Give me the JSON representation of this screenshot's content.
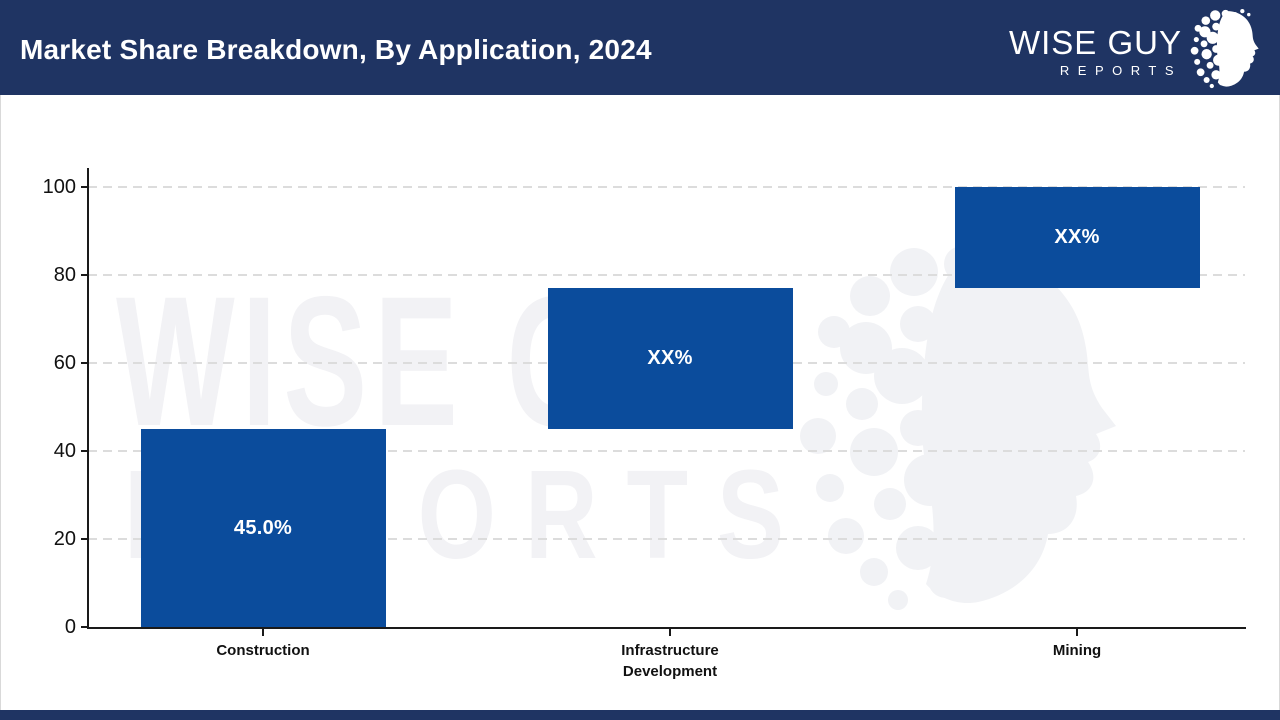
{
  "header": {
    "title": "Market Share Breakdown, By Application, 2024",
    "bg_color": "#1f3463",
    "logo": {
      "line1": "WISE GUY",
      "line2": "REPORTS",
      "icon": "dotted-face-profile"
    }
  },
  "watermark": {
    "line1": "WISE GUY",
    "line2": "REPORTS",
    "icon": "dotted-face-profile"
  },
  "chart_data": {
    "type": "bar",
    "subtype": "waterfall-floating-bars",
    "title": "Market Share Breakdown, By Application, 2024",
    "categories": [
      "Construction",
      "Infrastructure Development",
      "Mining"
    ],
    "categories_display": [
      "Construction",
      "Infrastructure\nDevelopment",
      "Mining"
    ],
    "segments": [
      {
        "category": "Construction",
        "start": 0,
        "end": 45,
        "label": "45.0%"
      },
      {
        "category": "Infrastructure Development",
        "start": 45,
        "end": 77,
        "label": "XX%"
      },
      {
        "category": "Mining",
        "start": 77,
        "end": 100,
        "label": "XX%"
      }
    ],
    "xlabel": "",
    "ylabel": "",
    "y_ticks": [
      0,
      20,
      40,
      60,
      80,
      100
    ],
    "ylim": [
      0,
      105
    ],
    "grid": "horizontal-dashed",
    "legend": "none",
    "bar_color": "#0b4c9c",
    "bar_label_color": "#ffffff",
    "axis_color": "#1a1a1a"
  }
}
